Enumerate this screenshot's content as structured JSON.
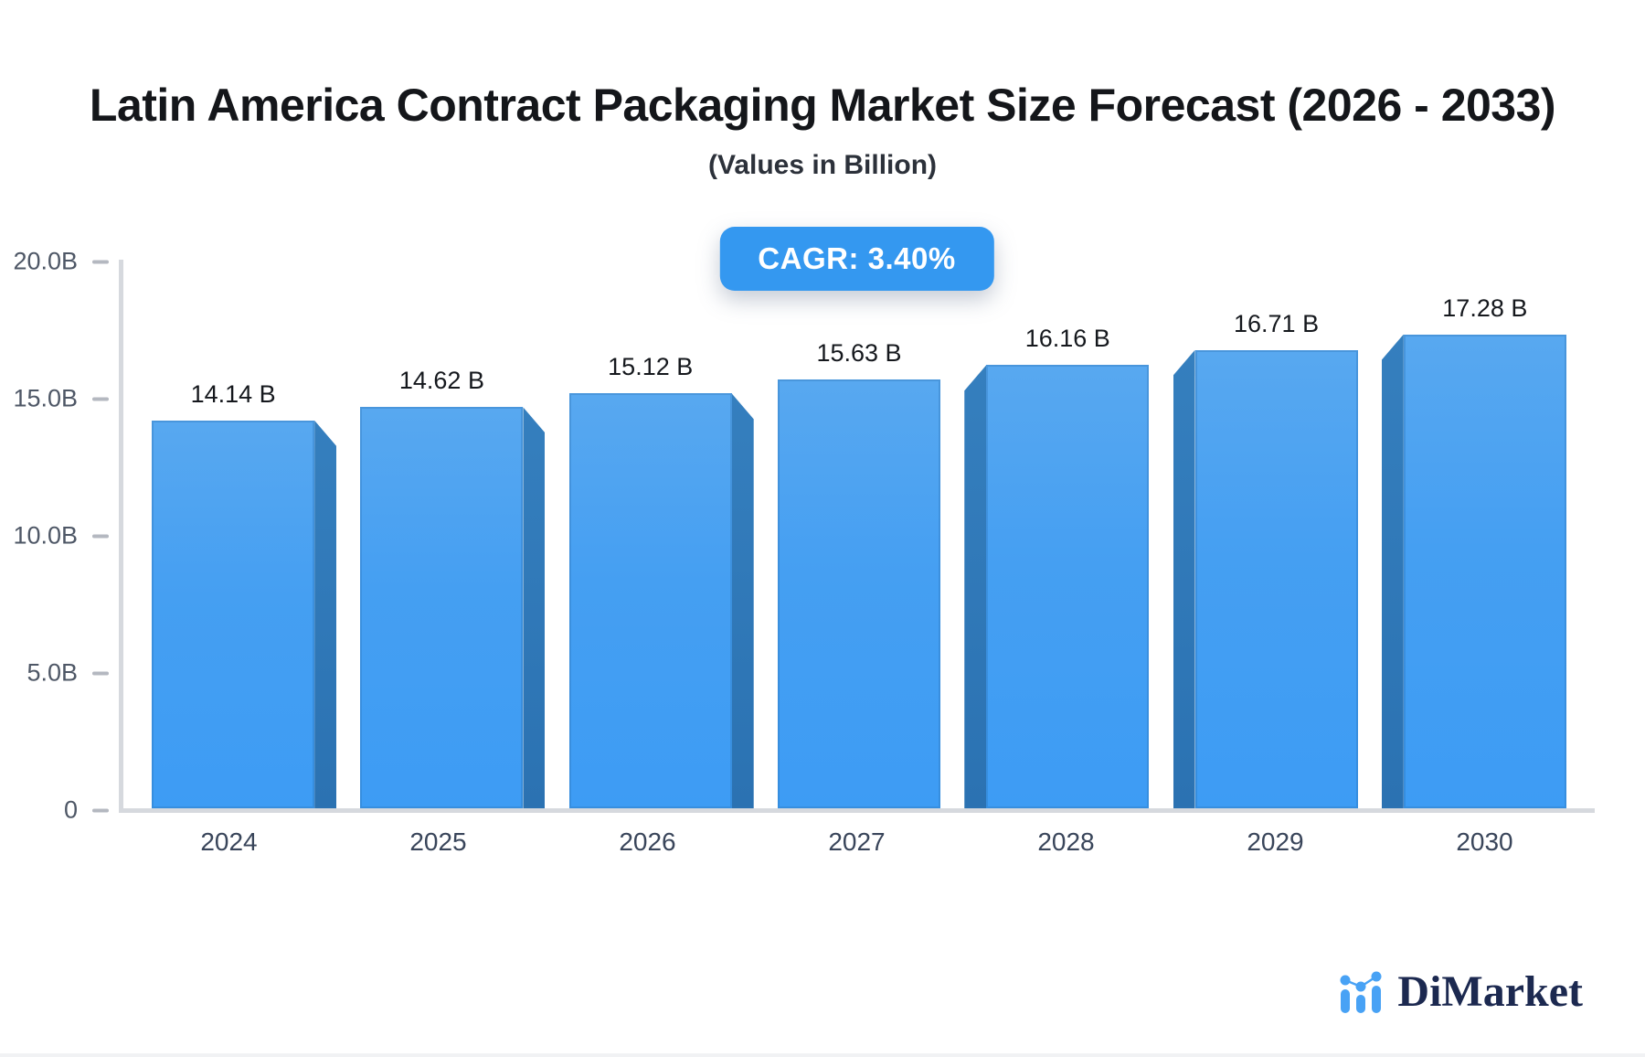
{
  "header": {
    "title": "Latin America Contract Packaging Market Size Forecast (2026 - 2033)",
    "subtitle": "(Values in Billion)",
    "cagr_badge": "CAGR: 3.40%"
  },
  "chart_data": {
    "type": "bar",
    "title": "Latin America Contract Packaging Market Size Forecast (2026 - 2033)",
    "subtitle": "(Values in Billion)",
    "cagr": "3.40%",
    "categories": [
      "2024",
      "2025",
      "2026",
      "2027",
      "2028",
      "2029",
      "2030"
    ],
    "values": [
      14.14,
      14.62,
      15.12,
      15.63,
      16.16,
      16.71,
      17.28
    ],
    "value_labels": [
      "14.14 B",
      "14.62 B",
      "15.12 B",
      "15.63 B",
      "16.16 B",
      "16.71 B",
      "17.28 B"
    ],
    "xlabel": "",
    "ylabel": "",
    "ylim": [
      0,
      20
    ],
    "yticks": [
      {
        "value": 0,
        "label": "0"
      },
      {
        "value": 5,
        "label": "5.0B"
      },
      {
        "value": 10,
        "label": "10.0B"
      },
      {
        "value": 15,
        "label": "15.0B"
      },
      {
        "value": 20,
        "label": "20.0B"
      }
    ],
    "grid": false,
    "legend": false,
    "bar_style": "3d-extruded bars, side face toward center bar (2027 has no side face)"
  },
  "footer": {
    "brand": "DiMarket",
    "logo_icon": "bar-chart-with-dots-logo-icon"
  },
  "colors": {
    "bar_top": "#58a8f0",
    "bar_bottom": "#3d9cf4",
    "bar_side": "#2e77b6",
    "badge_bg": "#3498f0",
    "badge_text": "#ffffff",
    "axis_line": "#d6d9de",
    "tick_mark": "#b4b8c0",
    "y_label": "#4e5766",
    "x_label": "#39455a",
    "value_label": "#15181d",
    "title": "#14161a",
    "brand_navy": "#1c2950",
    "brand_blue": "#48a2f5"
  }
}
